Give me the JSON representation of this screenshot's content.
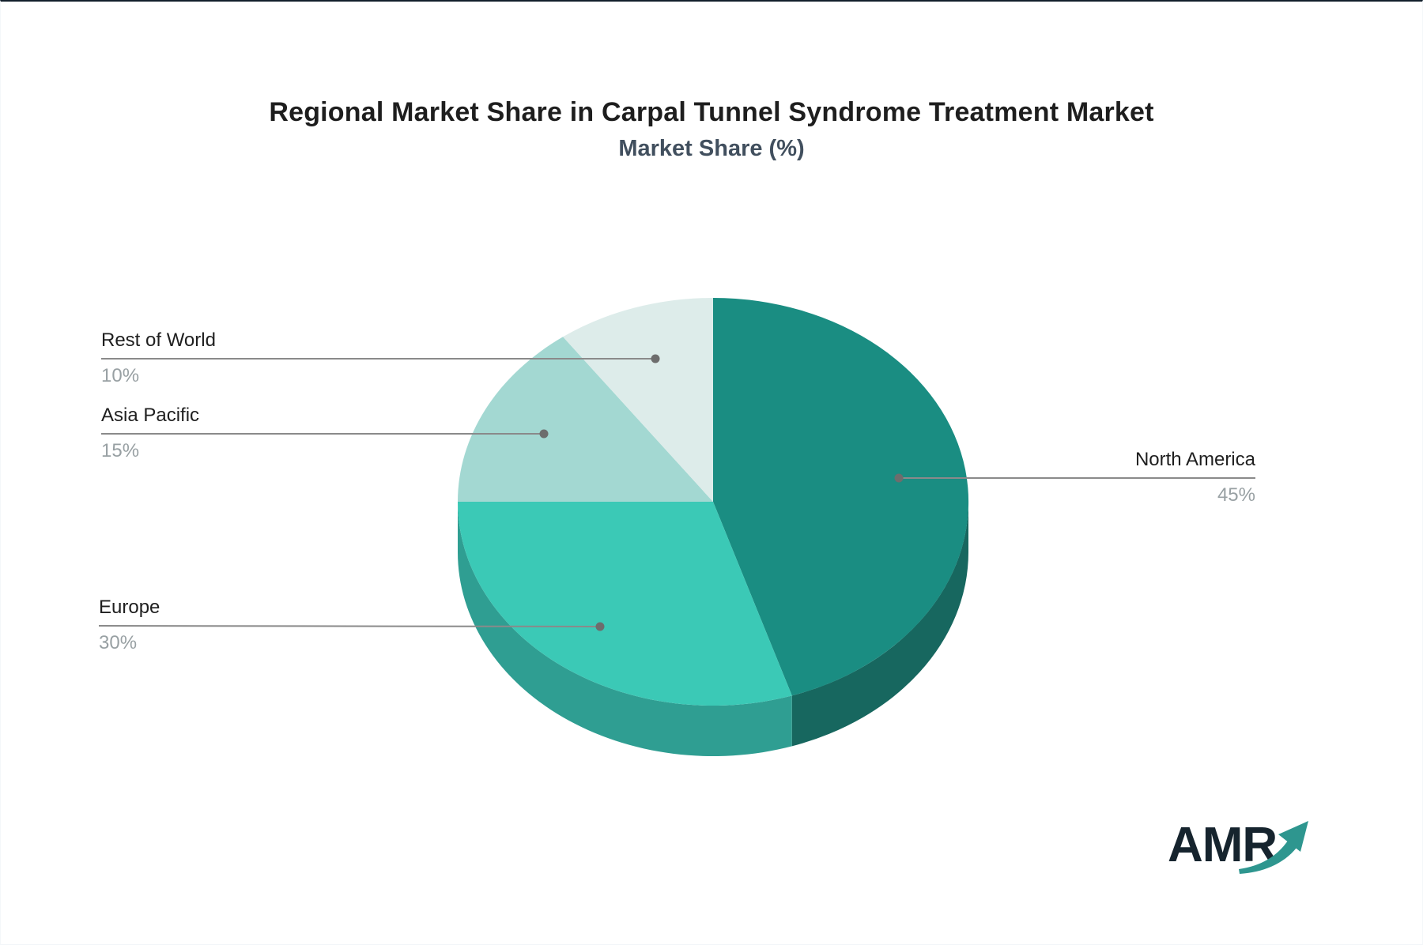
{
  "header": {
    "title": "Regional Market Share in Carpal Tunnel Syndrome Treatment Market",
    "subtitle": "Market Share (%)"
  },
  "chart_data": {
    "type": "pie",
    "title": "Regional Market Share in Carpal Tunnel Syndrome Treatment Market",
    "value_axis_label": "Market Share (%)",
    "unit": "%",
    "style": "3d-depth pie, starts at 12 o'clock, clockwise",
    "legend_position": "none (callout leader lines with name above line and percent below)",
    "segments": [
      {
        "label": "North America",
        "value": 45,
        "value_label": "45%",
        "color": "#1a8d82",
        "side_color": "#17675f",
        "callout_side": "right"
      },
      {
        "label": "Europe",
        "value": 30,
        "value_label": "30%",
        "color": "#3bc9b6",
        "side_color": "#2f9e92",
        "callout_side": "left"
      },
      {
        "label": "Asia Pacific",
        "value": 15,
        "value_label": "15%",
        "color": "#a3d8d2",
        "side_color": "#88bfb9",
        "callout_side": "left"
      },
      {
        "label": "Rest of World",
        "value": 10,
        "value_label": "10%",
        "color": "#ddecea",
        "side_color": "#c2d8d5",
        "callout_side": "left"
      }
    ],
    "leader_line_color": "#8a8a8a",
    "leader_dot_color": "#6d6d6d",
    "label_text_color": "#1f1f1f",
    "value_text_color": "#98a0a3"
  },
  "logo": {
    "text": "AMR",
    "text_color": "#16242e",
    "arrow_color": "#2e968f"
  }
}
